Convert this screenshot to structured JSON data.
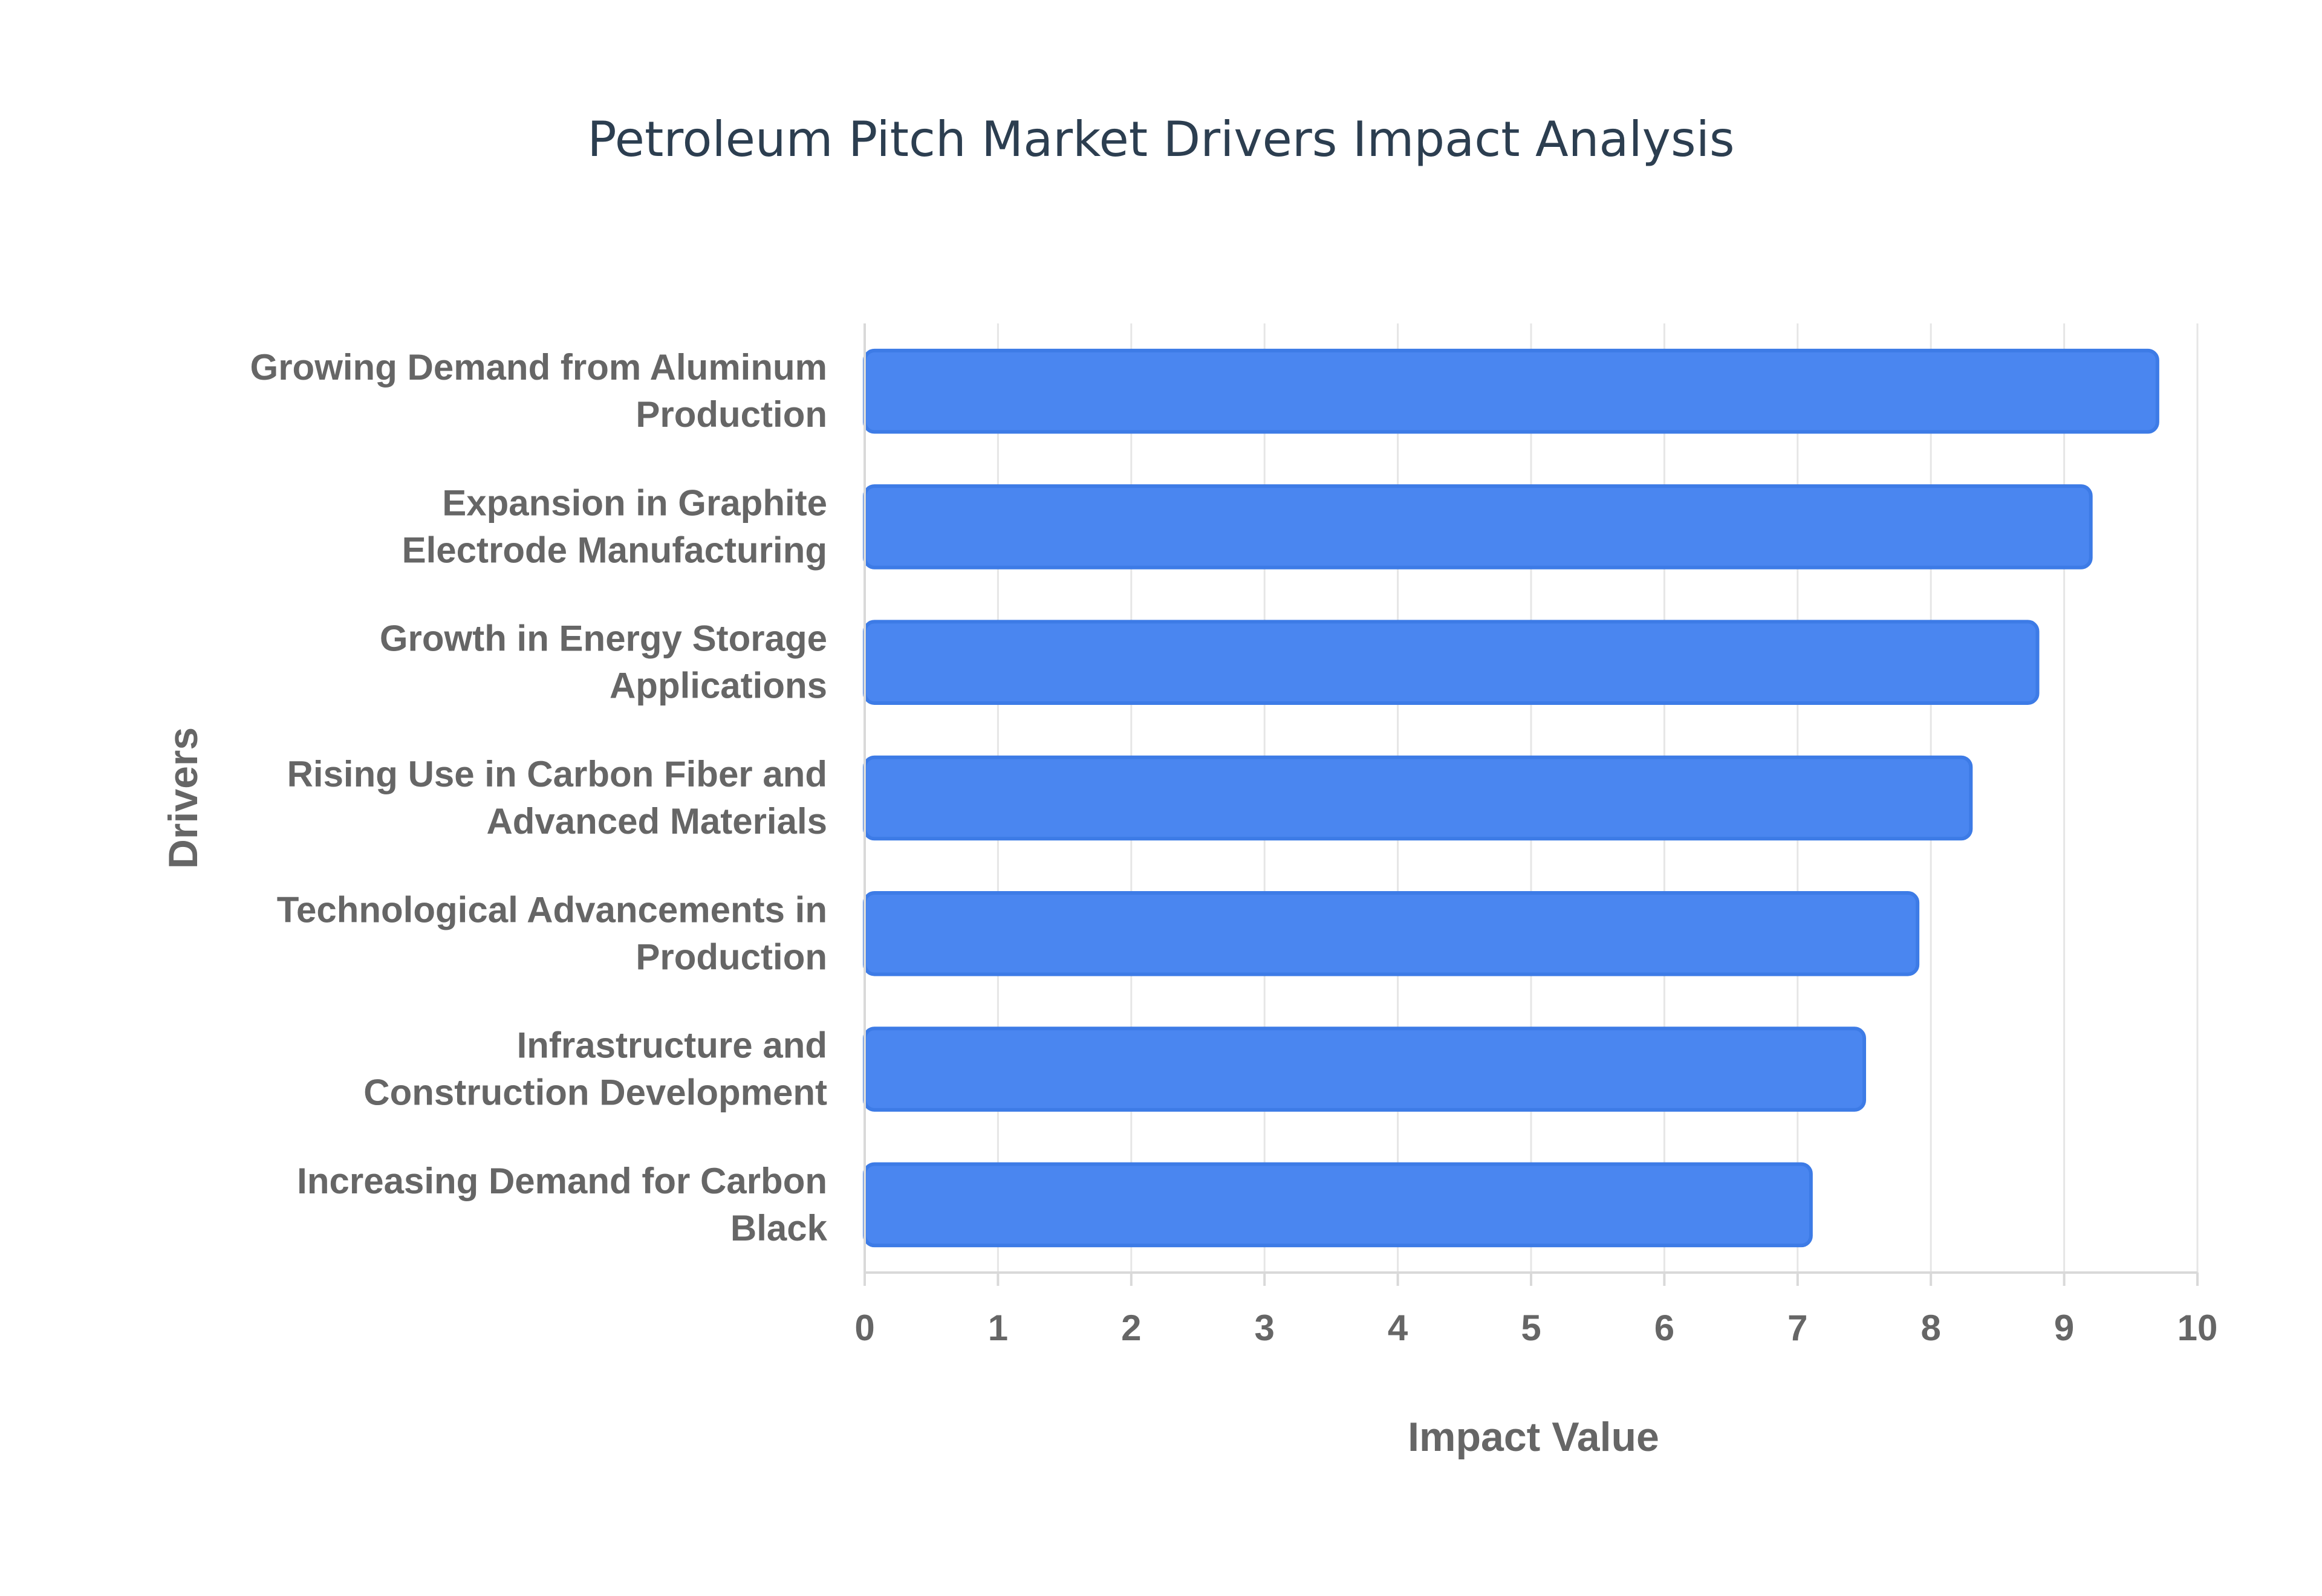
{
  "chart_data": {
    "type": "bar",
    "orientation": "horizontal",
    "title": "Petroleum Pitch Market Drivers Impact Analysis",
    "xlabel": "Impact Value",
    "ylabel": "Drivers",
    "xlim": [
      0,
      10
    ],
    "x_ticks": [
      "0",
      "1",
      "2",
      "3",
      "4",
      "5",
      "6",
      "7",
      "8",
      "9",
      "10"
    ],
    "grid": true,
    "legend": "none",
    "categories": [
      [
        "Growing Demand from Aluminum",
        "Production"
      ],
      [
        "Expansion in Graphite",
        "Electrode Manufacturing"
      ],
      [
        "Growth in Energy Storage",
        "Applications"
      ],
      [
        "Rising Use in Carbon Fiber and",
        "Advanced Materials"
      ],
      [
        "Technological Advancements in",
        "Production"
      ],
      [
        "Infrastructure and",
        "Construction Development"
      ],
      [
        "Increasing Demand for Carbon",
        "Black"
      ]
    ],
    "values": [
      9.7,
      9.2,
      8.8,
      8.3,
      7.9,
      7.5,
      7.1
    ],
    "colors": {
      "bar_fill": "#4a86f0",
      "bar_stroke": "#3d7be6"
    }
  }
}
